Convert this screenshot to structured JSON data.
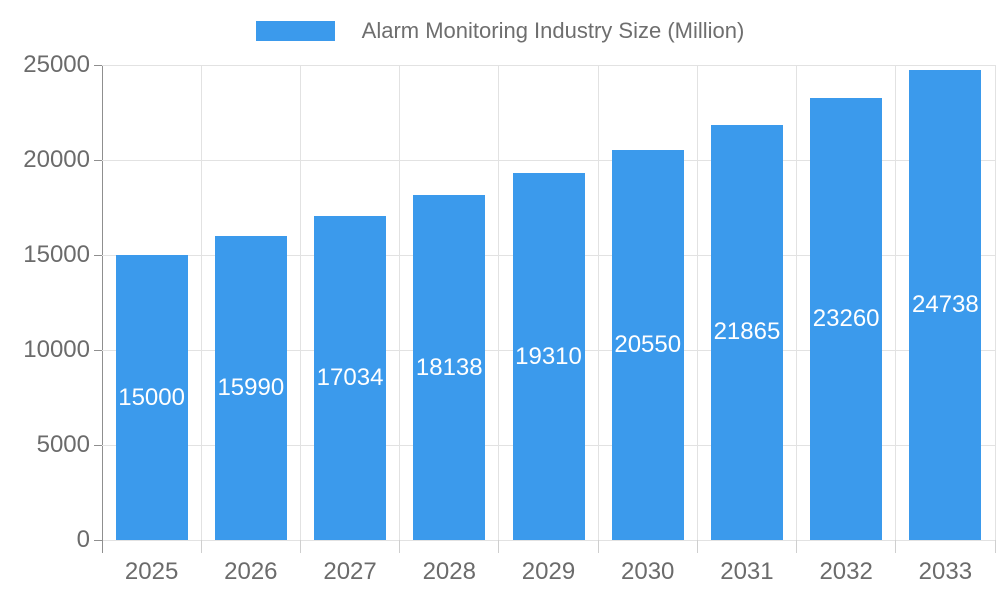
{
  "chart_data": {
    "type": "bar",
    "title": "",
    "legend_position": "top-center",
    "categories": [
      "2025",
      "2026",
      "2027",
      "2028",
      "2029",
      "2030",
      "2031",
      "2032",
      "2033"
    ],
    "series": [
      {
        "name": "Alarm Monitoring Industry Size (Million)",
        "values": [
          15000,
          15990,
          17034,
          18138,
          19310,
          20550,
          21865,
          23260,
          24738
        ]
      }
    ],
    "value_labels": [
      "15000",
      "15990",
      "17034",
      "18138",
      "19310",
      "20550",
      "21865",
      "23260",
      "24738"
    ],
    "xlabel": "",
    "ylabel": "",
    "ylim": [
      0,
      25000
    ],
    "yticks": [
      0,
      5000,
      10000,
      15000,
      20000,
      25000
    ],
    "ytick_labels": [
      "0",
      "5000",
      "10000",
      "15000",
      "20000",
      "25000"
    ],
    "grid": true,
    "colors": {
      "bar": "#3b9aec",
      "value_label": "#ffffff",
      "axis_text": "#6b6b6b",
      "legend_text": "#6e6e6e",
      "grid_line": "#e2e2e2",
      "axis_line": "#8f8f8f"
    }
  }
}
